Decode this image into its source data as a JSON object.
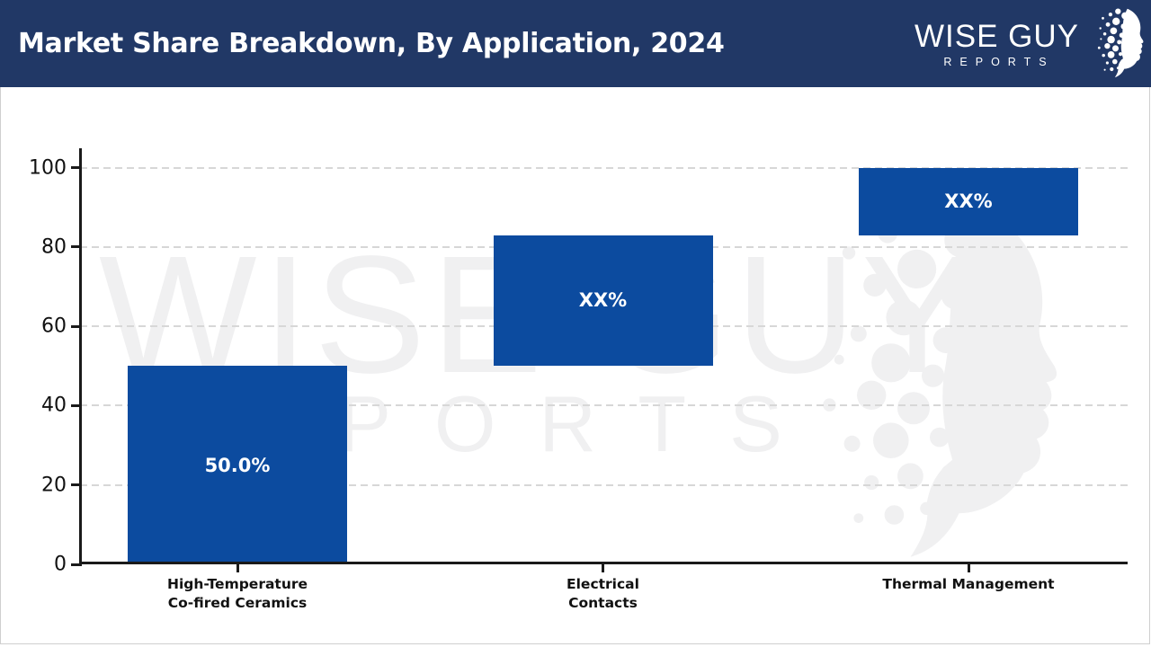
{
  "header": {
    "title": "Market Share Breakdown, By Application, 2024",
    "bg_color": "#213866",
    "logo": {
      "line1": "WISE GUY",
      "line2": "REPORTS"
    }
  },
  "watermark": {
    "line1": "WISE GUY",
    "line2": "REPORTS"
  },
  "colors": {
    "header_bg": "#213866",
    "bar": "#0c4b9f",
    "gridline": "#d7d7d7",
    "axis": "#1a1a1a",
    "watermark": "#f0f0f1"
  },
  "chart_data": {
    "type": "bar",
    "subtype": "floating-segment-waterfall",
    "title": "Market Share Breakdown, By Application, 2024",
    "categories": [
      "High-Temperature Co-fired Ceramics",
      "Electrical Contacts",
      "Thermal Management"
    ],
    "category_label_lines": [
      [
        "High-Temperature",
        "Co-fired Ceramics"
      ],
      [
        "Electrical",
        "Contacts"
      ],
      [
        "Thermal Management"
      ]
    ],
    "segments": [
      {
        "category": "High-Temperature Co-fired Ceramics",
        "start": 0,
        "end": 50,
        "label": "50.0%"
      },
      {
        "category": "Electrical Contacts",
        "start": 50,
        "end": 83,
        "label": "XX%"
      },
      {
        "category": "Thermal Management",
        "start": 83,
        "end": 100,
        "label": "XX%"
      }
    ],
    "yticks": [
      0,
      20,
      40,
      60,
      80,
      100
    ],
    "ylim": [
      0,
      105
    ],
    "xlabel": "",
    "ylabel": "",
    "grid": "horizontal-dashed",
    "legend": "none",
    "bar_color": "#0c4b9f",
    "bar_label_color": "#ffffff"
  }
}
